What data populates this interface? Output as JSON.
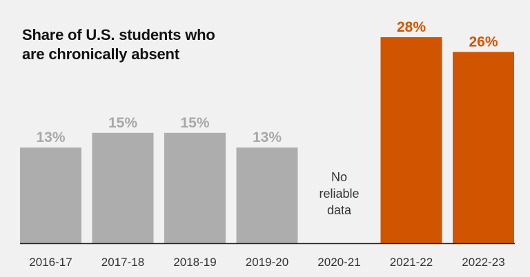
{
  "chart_data": {
    "type": "bar",
    "title_lines": [
      "Share of U.S. students who",
      "are chronically absent"
    ],
    "categories": [
      "2016-17",
      "2017-18",
      "2018-19",
      "2019-20",
      "2020-21",
      "2021-22",
      "2022-23"
    ],
    "values": [
      13,
      15,
      15,
      13,
      null,
      28,
      26
    ],
    "data_labels": [
      "13%",
      "15%",
      "15%",
      "13%",
      "",
      "28%",
      "26%"
    ],
    "missing_note_lines": [
      "No",
      "reliable",
      "data"
    ],
    "highlighted": [
      false,
      false,
      false,
      false,
      false,
      true,
      true
    ],
    "ylim": [
      0,
      33
    ],
    "grid": false,
    "xlabel": "",
    "ylabel": "",
    "colors": {
      "base": "#adadad",
      "highlight": "#d15400",
      "base_label": "#a8a8a8",
      "axis": "#222222",
      "background": "#f1f1f1"
    }
  }
}
